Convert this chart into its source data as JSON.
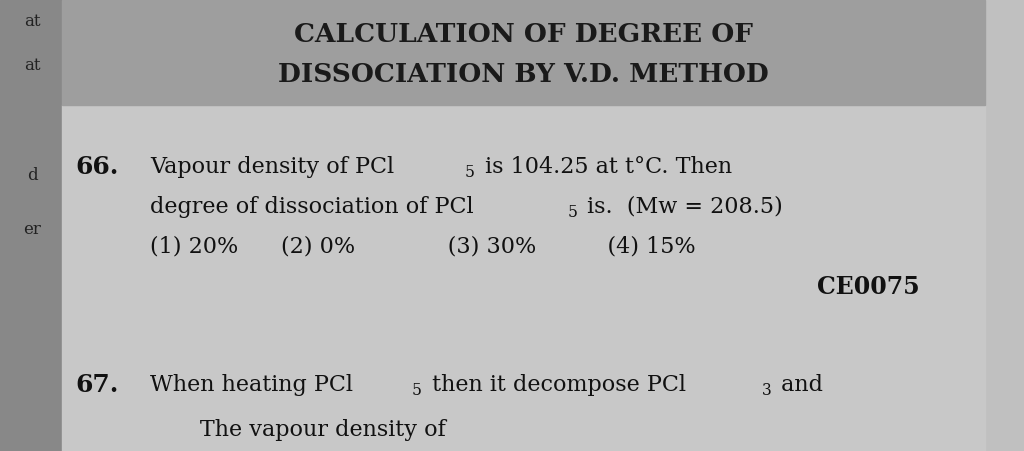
{
  "page_bg": "#c2c2c2",
  "left_strip_color": "#888888",
  "right_strip_color": "#c0c0c0",
  "header_bg": "#9e9e9e",
  "header_line1": "CALCULATION OF DEGREE OF",
  "header_line2": "DISSOCIATION BY V.D. METHOD",
  "header_text_color": "#1a1a1a",
  "content_bg": "#c8c8c8",
  "text_color": "#111111",
  "left_margin_labels": [
    [
      "at",
      22
    ],
    [
      "at",
      65
    ],
    [
      "d",
      175
    ],
    [
      "er",
      230
    ]
  ],
  "q66_num": "66.",
  "q67_num": "67.",
  "q66_code": "CE0075",
  "figsize": [
    10.24,
    4.51
  ],
  "dpi": 100
}
